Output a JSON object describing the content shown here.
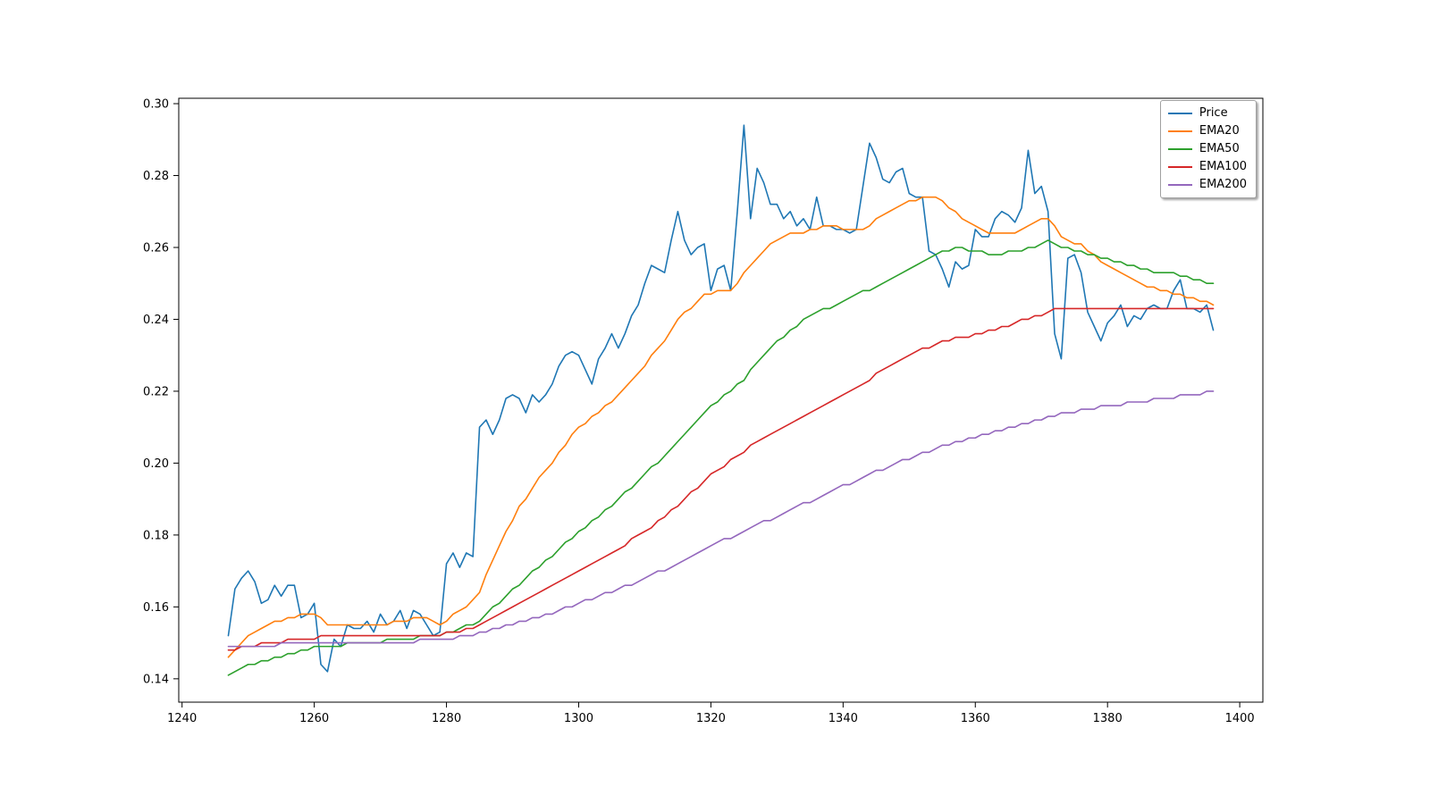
{
  "figure": {
    "background": "#ffffff"
  },
  "chart_data": {
    "type": "line",
    "title": "",
    "xlabel": "",
    "ylabel": "",
    "grid": false,
    "legend_position": "upper right",
    "xlim": [
      1239.5,
      1403.5
    ],
    "ylim": [
      0.1335,
      0.3015
    ],
    "x_tick_values": [
      1240,
      1260,
      1280,
      1300,
      1320,
      1340,
      1360,
      1380,
      1400
    ],
    "x_tick_labels": [
      "1240",
      "1260",
      "1280",
      "1300",
      "1320",
      "1340",
      "1360",
      "1380",
      "1400"
    ],
    "y_tick_values": [
      0.14,
      0.16,
      0.18,
      0.2,
      0.22,
      0.24,
      0.26,
      0.28,
      0.3
    ],
    "y_tick_labels": [
      "0.14",
      "0.16",
      "0.18",
      "0.20",
      "0.22",
      "0.24",
      "0.26",
      "0.28",
      "0.30"
    ],
    "x_start": 1247,
    "x_step": 1,
    "n_points": 150,
    "series": [
      {
        "name": "Price",
        "color": "#1f77b4",
        "values": [
          0.152,
          0.165,
          0.168,
          0.17,
          0.167,
          0.161,
          0.162,
          0.166,
          0.163,
          0.166,
          0.166,
          0.157,
          0.158,
          0.161,
          0.144,
          0.142,
          0.151,
          0.149,
          0.155,
          0.154,
          0.154,
          0.156,
          0.153,
          0.158,
          0.155,
          0.156,
          0.159,
          0.154,
          0.159,
          0.158,
          0.155,
          0.152,
          0.153,
          0.172,
          0.175,
          0.171,
          0.175,
          0.174,
          0.21,
          0.212,
          0.208,
          0.212,
          0.218,
          0.219,
          0.218,
          0.214,
          0.219,
          0.217,
          0.219,
          0.222,
          0.227,
          0.23,
          0.231,
          0.23,
          0.226,
          0.222,
          0.229,
          0.232,
          0.236,
          0.232,
          0.236,
          0.241,
          0.244,
          0.25,
          0.255,
          0.254,
          0.253,
          0.262,
          0.27,
          0.262,
          0.258,
          0.26,
          0.261,
          0.248,
          0.254,
          0.255,
          0.248,
          0.27,
          0.294,
          0.268,
          0.282,
          0.278,
          0.272,
          0.272,
          0.268,
          0.27,
          0.266,
          0.268,
          0.265,
          0.274,
          0.266,
          0.266,
          0.265,
          0.265,
          0.264,
          0.265,
          0.277,
          0.289,
          0.285,
          0.279,
          0.278,
          0.281,
          0.282,
          0.275,
          0.274,
          0.274,
          0.259,
          0.258,
          0.254,
          0.249,
          0.256,
          0.254,
          0.255,
          0.265,
          0.263,
          0.263,
          0.268,
          0.27,
          0.269,
          0.267,
          0.271,
          0.287,
          0.275,
          0.277,
          0.27,
          0.236,
          0.229,
          0.257,
          0.258,
          0.253,
          0.242,
          0.238,
          0.234,
          0.239,
          0.241,
          0.244,
          0.238,
          0.241,
          0.24,
          0.243,
          0.244,
          0.243,
          0.243,
          0.248,
          0.251,
          0.243,
          0.243,
          0.242,
          0.244,
          0.237
        ]
      },
      {
        "name": "EMA20",
        "color": "#ff7f0e",
        "values": [
          0.146,
          0.148,
          0.15,
          0.152,
          0.153,
          0.154,
          0.155,
          0.156,
          0.156,
          0.157,
          0.157,
          0.158,
          0.158,
          0.158,
          0.157,
          0.155,
          0.155,
          0.155,
          0.155,
          0.155,
          0.155,
          0.155,
          0.155,
          0.155,
          0.155,
          0.156,
          0.156,
          0.156,
          0.157,
          0.157,
          0.157,
          0.156,
          0.155,
          0.156,
          0.158,
          0.159,
          0.16,
          0.162,
          0.164,
          0.169,
          0.173,
          0.177,
          0.181,
          0.184,
          0.188,
          0.19,
          0.193,
          0.196,
          0.198,
          0.2,
          0.203,
          0.205,
          0.208,
          0.21,
          0.211,
          0.213,
          0.214,
          0.216,
          0.217,
          0.219,
          0.221,
          0.223,
          0.225,
          0.227,
          0.23,
          0.232,
          0.234,
          0.237,
          0.24,
          0.242,
          0.243,
          0.245,
          0.247,
          0.247,
          0.248,
          0.248,
          0.248,
          0.25,
          0.253,
          0.255,
          0.257,
          0.259,
          0.261,
          0.262,
          0.263,
          0.264,
          0.264,
          0.264,
          0.265,
          0.265,
          0.266,
          0.266,
          0.266,
          0.265,
          0.265,
          0.265,
          0.265,
          0.266,
          0.268,
          0.269,
          0.27,
          0.271,
          0.272,
          0.273,
          0.273,
          0.274,
          0.274,
          0.274,
          0.273,
          0.271,
          0.27,
          0.268,
          0.267,
          0.266,
          0.265,
          0.264,
          0.264,
          0.264,
          0.264,
          0.264,
          0.265,
          0.266,
          0.267,
          0.268,
          0.268,
          0.266,
          0.263,
          0.262,
          0.261,
          0.261,
          0.259,
          0.258,
          0.256,
          0.255,
          0.254,
          0.253,
          0.252,
          0.251,
          0.25,
          0.249,
          0.249,
          0.248,
          0.248,
          0.247,
          0.247,
          0.246,
          0.246,
          0.245,
          0.245,
          0.244
        ]
      },
      {
        "name": "EMA50",
        "color": "#2ca02c",
        "values": [
          0.141,
          0.142,
          0.143,
          0.144,
          0.144,
          0.145,
          0.145,
          0.146,
          0.146,
          0.147,
          0.147,
          0.148,
          0.148,
          0.149,
          0.149,
          0.149,
          0.149,
          0.149,
          0.15,
          0.15,
          0.15,
          0.15,
          0.15,
          0.15,
          0.151,
          0.151,
          0.151,
          0.151,
          0.151,
          0.152,
          0.152,
          0.152,
          0.152,
          0.153,
          0.153,
          0.154,
          0.155,
          0.155,
          0.156,
          0.158,
          0.16,
          0.161,
          0.163,
          0.165,
          0.166,
          0.168,
          0.17,
          0.171,
          0.173,
          0.174,
          0.176,
          0.178,
          0.179,
          0.181,
          0.182,
          0.184,
          0.185,
          0.187,
          0.188,
          0.19,
          0.192,
          0.193,
          0.195,
          0.197,
          0.199,
          0.2,
          0.202,
          0.204,
          0.206,
          0.208,
          0.21,
          0.212,
          0.214,
          0.216,
          0.217,
          0.219,
          0.22,
          0.222,
          0.223,
          0.226,
          0.228,
          0.23,
          0.232,
          0.234,
          0.235,
          0.237,
          0.238,
          0.24,
          0.241,
          0.242,
          0.243,
          0.243,
          0.244,
          0.245,
          0.246,
          0.247,
          0.248,
          0.248,
          0.249,
          0.25,
          0.251,
          0.252,
          0.253,
          0.254,
          0.255,
          0.256,
          0.257,
          0.258,
          0.259,
          0.259,
          0.26,
          0.26,
          0.259,
          0.259,
          0.259,
          0.258,
          0.258,
          0.258,
          0.259,
          0.259,
          0.259,
          0.26,
          0.26,
          0.261,
          0.262,
          0.261,
          0.26,
          0.26,
          0.259,
          0.259,
          0.258,
          0.258,
          0.257,
          0.257,
          0.256,
          0.256,
          0.255,
          0.255,
          0.254,
          0.254,
          0.253,
          0.253,
          0.253,
          0.253,
          0.252,
          0.252,
          0.251,
          0.251,
          0.25,
          0.25
        ]
      },
      {
        "name": "EMA100",
        "color": "#d62728",
        "values": [
          0.148,
          0.148,
          0.149,
          0.149,
          0.149,
          0.15,
          0.15,
          0.15,
          0.15,
          0.151,
          0.151,
          0.151,
          0.151,
          0.151,
          0.152,
          0.152,
          0.152,
          0.152,
          0.152,
          0.152,
          0.152,
          0.152,
          0.152,
          0.152,
          0.152,
          0.152,
          0.152,
          0.152,
          0.152,
          0.152,
          0.152,
          0.152,
          0.152,
          0.153,
          0.153,
          0.153,
          0.154,
          0.154,
          0.155,
          0.156,
          0.157,
          0.158,
          0.159,
          0.16,
          0.161,
          0.162,
          0.163,
          0.164,
          0.165,
          0.166,
          0.167,
          0.168,
          0.169,
          0.17,
          0.171,
          0.172,
          0.173,
          0.174,
          0.175,
          0.176,
          0.177,
          0.179,
          0.18,
          0.181,
          0.182,
          0.184,
          0.185,
          0.187,
          0.188,
          0.19,
          0.192,
          0.193,
          0.195,
          0.197,
          0.198,
          0.199,
          0.201,
          0.202,
          0.203,
          0.205,
          0.206,
          0.207,
          0.208,
          0.209,
          0.21,
          0.211,
          0.212,
          0.213,
          0.214,
          0.215,
          0.216,
          0.217,
          0.218,
          0.219,
          0.22,
          0.221,
          0.222,
          0.223,
          0.225,
          0.226,
          0.227,
          0.228,
          0.229,
          0.23,
          0.231,
          0.232,
          0.232,
          0.233,
          0.234,
          0.234,
          0.235,
          0.235,
          0.235,
          0.236,
          0.236,
          0.237,
          0.237,
          0.238,
          0.238,
          0.239,
          0.24,
          0.24,
          0.241,
          0.241,
          0.242,
          0.243,
          0.243,
          0.243,
          0.243,
          0.243,
          0.243,
          0.243,
          0.243,
          0.243,
          0.243,
          0.243,
          0.243,
          0.243,
          0.243,
          0.243,
          0.243,
          0.243,
          0.243,
          0.243,
          0.243,
          0.243,
          0.243,
          0.243,
          0.243,
          0.243
        ]
      },
      {
        "name": "EMA200",
        "color": "#9467bd",
        "values": [
          0.149,
          0.149,
          0.149,
          0.149,
          0.149,
          0.149,
          0.149,
          0.149,
          0.15,
          0.15,
          0.15,
          0.15,
          0.15,
          0.15,
          0.15,
          0.15,
          0.15,
          0.15,
          0.15,
          0.15,
          0.15,
          0.15,
          0.15,
          0.15,
          0.15,
          0.15,
          0.15,
          0.15,
          0.15,
          0.151,
          0.151,
          0.151,
          0.151,
          0.151,
          0.151,
          0.152,
          0.152,
          0.152,
          0.153,
          0.153,
          0.154,
          0.154,
          0.155,
          0.155,
          0.156,
          0.156,
          0.157,
          0.157,
          0.158,
          0.158,
          0.159,
          0.16,
          0.16,
          0.161,
          0.162,
          0.162,
          0.163,
          0.164,
          0.164,
          0.165,
          0.166,
          0.166,
          0.167,
          0.168,
          0.169,
          0.17,
          0.17,
          0.171,
          0.172,
          0.173,
          0.174,
          0.175,
          0.176,
          0.177,
          0.178,
          0.179,
          0.179,
          0.18,
          0.181,
          0.182,
          0.183,
          0.184,
          0.184,
          0.185,
          0.186,
          0.187,
          0.188,
          0.189,
          0.189,
          0.19,
          0.191,
          0.192,
          0.193,
          0.194,
          0.194,
          0.195,
          0.196,
          0.197,
          0.198,
          0.198,
          0.199,
          0.2,
          0.201,
          0.201,
          0.202,
          0.203,
          0.203,
          0.204,
          0.205,
          0.205,
          0.206,
          0.206,
          0.207,
          0.207,
          0.208,
          0.208,
          0.209,
          0.209,
          0.21,
          0.21,
          0.211,
          0.211,
          0.212,
          0.212,
          0.213,
          0.213,
          0.214,
          0.214,
          0.214,
          0.215,
          0.215,
          0.215,
          0.216,
          0.216,
          0.216,
          0.216,
          0.217,
          0.217,
          0.217,
          0.217,
          0.218,
          0.218,
          0.218,
          0.218,
          0.219,
          0.219,
          0.219,
          0.219,
          0.22,
          0.22
        ]
      }
    ]
  }
}
